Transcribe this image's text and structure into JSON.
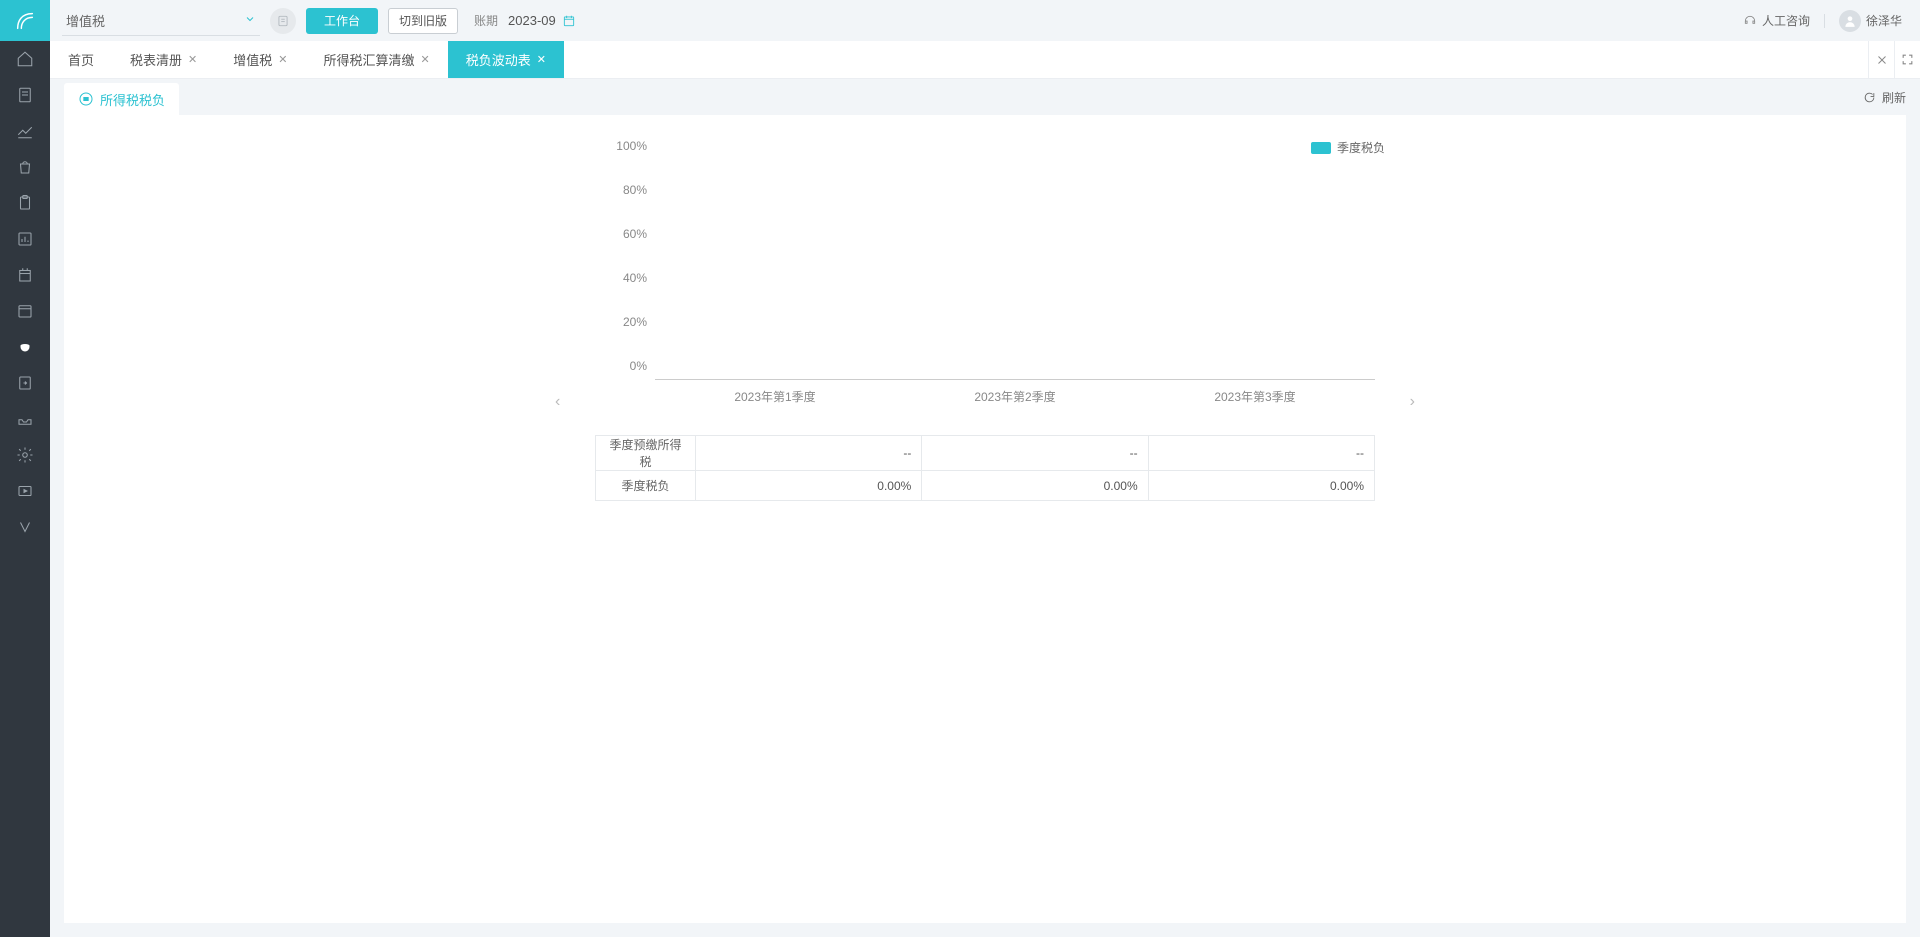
{
  "header": {
    "company_name": "增值税",
    "workspace_btn": "工作台",
    "switch_old_btn": "切到旧版",
    "period_label": "账期",
    "period_value": "2023-09",
    "support_label": "人工咨询",
    "user_name": "徐泽华"
  },
  "tabs": [
    {
      "label": "首页",
      "closable": false,
      "active": false
    },
    {
      "label": "税表清册",
      "closable": true,
      "active": false
    },
    {
      "label": "增值税",
      "closable": true,
      "active": false
    },
    {
      "label": "所得税汇算清缴",
      "closable": true,
      "active": false
    },
    {
      "label": "税负波动表",
      "closable": true,
      "active": true
    }
  ],
  "sub_tab": {
    "label": "所得税税负"
  },
  "refresh_label": "刷新",
  "chart": {
    "type": "bar",
    "legend_label": "季度税负",
    "legend_color": "#2cc2d1",
    "y_ticks": [
      "0%",
      "20%",
      "40%",
      "60%",
      "80%",
      "100%"
    ],
    "ylim": [
      0,
      100
    ],
    "x_categories": [
      "2023年第1季度",
      "2023年第2季度",
      "2023年第3季度"
    ],
    "values": [
      0,
      0,
      0
    ],
    "axis_color": "#cccccc",
    "label_color": "#888888",
    "label_fontsize": 12,
    "background_color": "#ffffff"
  },
  "table": {
    "row_labels": [
      "季度预缴所得税",
      "季度税负"
    ],
    "rows": [
      [
        "--",
        "--",
        "--"
      ],
      [
        "0.00%",
        "0.00%",
        "0.00%"
      ]
    ],
    "border_color": "#e6e9ec"
  },
  "sidebar_icons": [
    "home",
    "doc",
    "chart",
    "bag",
    "clipboard",
    "report",
    "tax",
    "calendar",
    "active-cup",
    "export",
    "inbox",
    "gear",
    "video",
    "v"
  ]
}
